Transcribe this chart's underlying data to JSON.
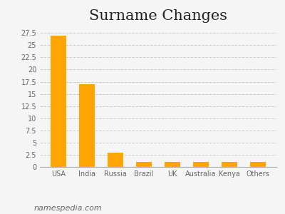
{
  "title": "Surname Changes",
  "categories": [
    "USA",
    "India",
    "Russia",
    "Brazil",
    "UK",
    "Australia",
    "Kenya",
    "Others"
  ],
  "values": [
    27,
    17,
    3,
    1,
    1,
    1,
    1,
    1
  ],
  "bar_color": "#FFA500",
  "ylim": [
    0,
    29
  ],
  "yticks": [
    0,
    2.5,
    5,
    7.5,
    10,
    12.5,
    15,
    17.5,
    20,
    22.5,
    25,
    27.5
  ],
  "ytick_labels": [
    "0",
    "2.5",
    "5",
    "7.5",
    "10",
    "12.5",
    "15",
    "17.5",
    "20",
    "22.5",
    "25",
    "27.5"
  ],
  "grid_color": "#cccccc",
  "background_color": "#f5f5f5",
  "title_fontsize": 15,
  "tick_fontsize": 7,
  "watermark": "namespedia.com",
  "watermark_fontsize": 8
}
